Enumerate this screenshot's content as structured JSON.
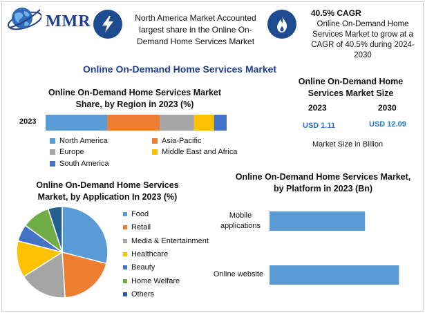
{
  "brand": {
    "logo_text": "MMR"
  },
  "info_boxes": [
    {
      "icon": "lightning-icon",
      "text": "North America Market Accounted largest share in the Online On-Demand Home Services Market"
    },
    {
      "icon": "flame-icon",
      "title": "40.5% CAGR",
      "text": "Online On-Demand Home Services Market to grow at a CAGR of 40.5% during 2024-2030"
    }
  ],
  "main_title": "Online On-Demand Home Services Market",
  "colors": {
    "accent": "#1f3f8c",
    "icon_bg": "#1e4a8f",
    "usd": "#2a73d6"
  },
  "market_size": {
    "title": "Online On-Demand Home Services Market Size",
    "year_a": "2023",
    "year_b": "2030",
    "value_a": "USD 1.11",
    "value_b": "USD 12.09",
    "note": "Market Size in Billion"
  },
  "chart_data": [
    {
      "type": "bar",
      "stacked": true,
      "orientation": "horizontal",
      "title": "Online On-Demand Home Services Market Share, by Region in 2023 (%)",
      "categories": [
        "2023"
      ],
      "series": [
        {
          "name": "North America",
          "values": [
            34
          ],
          "color": "#5b9bd5"
        },
        {
          "name": "Asia-Pacific",
          "values": [
            29
          ],
          "color": "#ed7d31"
        },
        {
          "name": "Europe",
          "values": [
            19
          ],
          "color": "#a5a5a5"
        },
        {
          "name": "Middle East and Africa",
          "values": [
            11
          ],
          "color": "#ffc000"
        },
        {
          "name": "South America",
          "values": [
            7
          ],
          "color": "#4472c4"
        }
      ],
      "legend": "bottom"
    },
    {
      "type": "pie",
      "title": "Online On-Demand Home Services Market, by Application In 2023 (%)",
      "labels": [
        "Food",
        "Retail",
        "Media & Entertainment",
        "Healthcare",
        "Beauty",
        "Home Welfare",
        "Others"
      ],
      "values": [
        29,
        20,
        17,
        13,
        6,
        10,
        5
      ],
      "colors": [
        "#5b9bd5",
        "#ed7d31",
        "#a5a5a5",
        "#ffc000",
        "#4472c4",
        "#70ad47",
        "#255e91"
      ],
      "legend": "right"
    },
    {
      "type": "bar",
      "orientation": "horizontal",
      "title": "Online On-Demand Home Services Market, by Platform in 2023 (Bn)",
      "categories": [
        "Mobile applications",
        "Online website"
      ],
      "values": [
        0.45,
        0.61
      ],
      "xlim": [
        0,
        0.7
      ],
      "color": "#5b9bd5"
    }
  ]
}
